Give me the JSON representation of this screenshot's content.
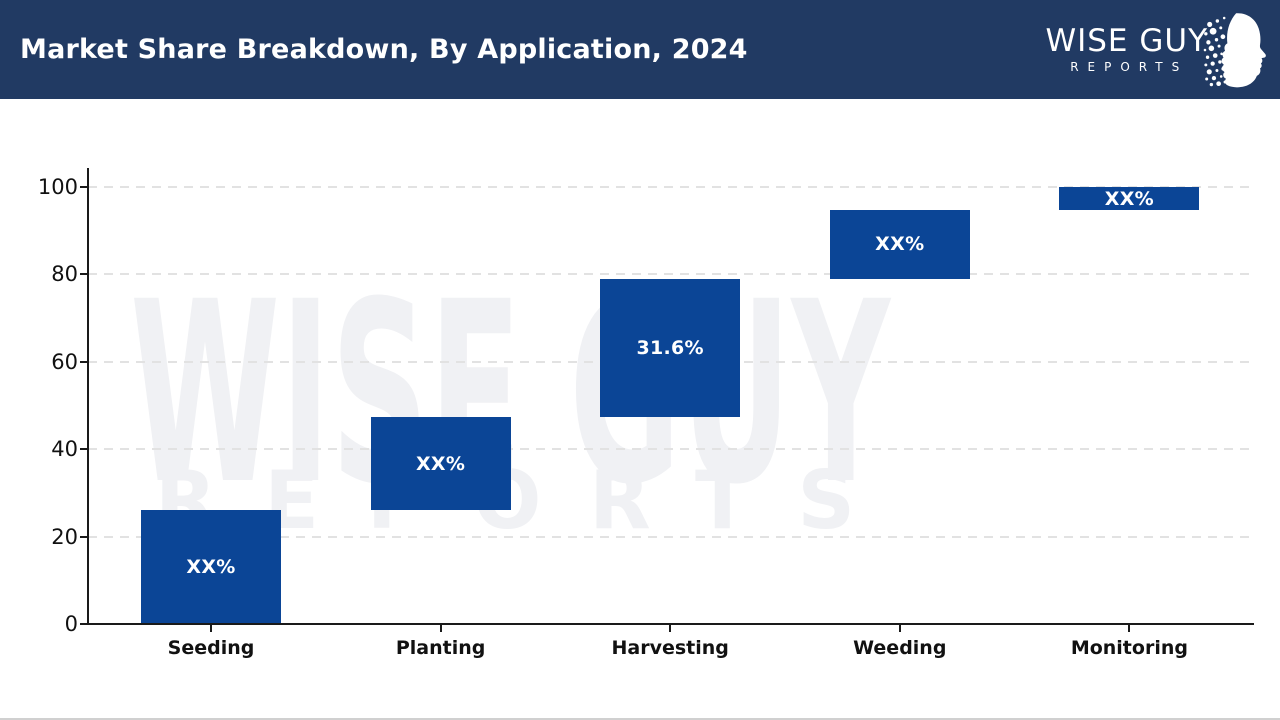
{
  "header": {
    "title": "Market Share Breakdown, By Application, 2024",
    "logo": {
      "wordmark": "WISE GUY",
      "subtext": "REPORTS"
    }
  },
  "watermark": {
    "line1": "WISE GUY",
    "line2": "REPORTS"
  },
  "colors": {
    "header_bg": "#213a63",
    "title_text": "#ffffff",
    "bar": "#0b4596",
    "bar_label": "#ffffff",
    "axis": "#1a1a1a",
    "text": "#111111",
    "grid": "#e2e2e2",
    "watermark": "#f0f1f4",
    "footer_line": "#d0d0d0"
  },
  "chart_data": {
    "type": "bar",
    "subtype": "floating-segment-waterfall",
    "title": "Market Share Breakdown, By Application, 2024",
    "categories": [
      "Seeding",
      "Planting",
      "Harvesting",
      "Weeding",
      "Monitoring"
    ],
    "series": [
      {
        "name": "Market share segment (%)",
        "segments": [
          {
            "category": "Seeding",
            "base": 0,
            "top": 26.0,
            "label": "XX%"
          },
          {
            "category": "Planting",
            "base": 26.0,
            "top": 47.4,
            "label": "XX%"
          },
          {
            "category": "Harvesting",
            "base": 47.4,
            "top": 79.0,
            "label": "31.6%"
          },
          {
            "category": "Weeding",
            "base": 79.0,
            "top": 94.7,
            "label": "XX%"
          },
          {
            "category": "Monitoring",
            "base": 94.7,
            "top": 100.0,
            "label": "XX%"
          }
        ]
      }
    ],
    "yticks": [
      0,
      20,
      40,
      60,
      80,
      100
    ],
    "ylim": [
      0,
      104.5
    ],
    "xlabel": "",
    "ylabel": "",
    "grid": "horizontal-dashed",
    "legend": "none"
  }
}
